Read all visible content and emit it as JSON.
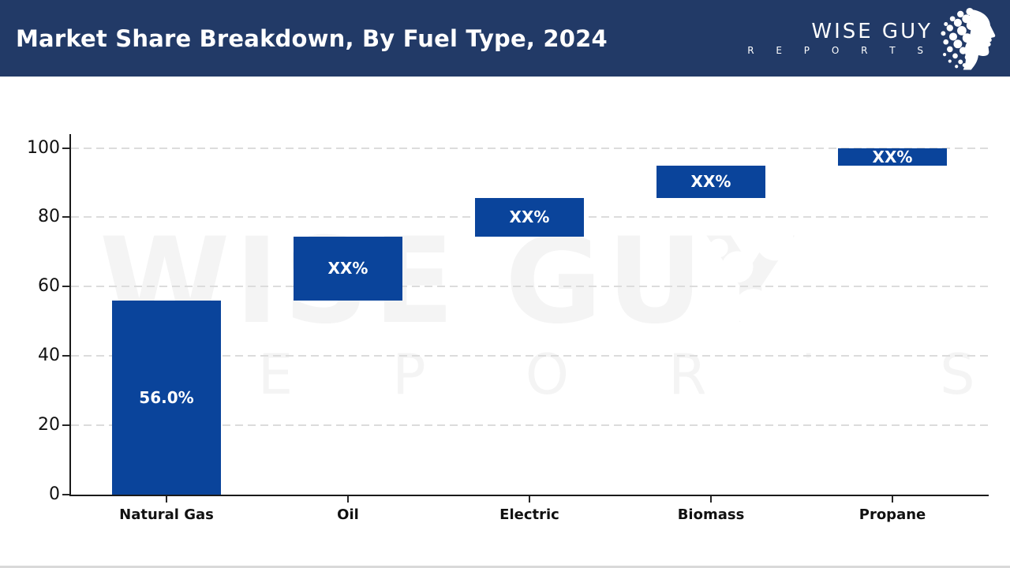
{
  "header": {
    "title": "Market Share Breakdown, By Fuel Type, 2024",
    "background_color": "#223a67",
    "text_color": "#ffffff"
  },
  "logo": {
    "name": "WISE GUY",
    "subtitle": "R E P O R T S"
  },
  "watermark": {
    "line1": "WISE GUY",
    "line2": "R E P O R T S"
  },
  "chart_data": {
    "type": "bar",
    "subtype": "waterfall",
    "title": "Market Share Breakdown, By Fuel Type, 2024",
    "categories": [
      "Natural Gas",
      "Oil",
      "Electric",
      "Biomass",
      "Propane"
    ],
    "segments": [
      {
        "category": "Natural Gas",
        "start": 0,
        "end": 56,
        "label": "56.0%"
      },
      {
        "category": "Oil",
        "start": 56,
        "end": 74.5,
        "label": "XX%"
      },
      {
        "category": "Electric",
        "start": 74.5,
        "end": 85.5,
        "label": "XX%"
      },
      {
        "category": "Biomass",
        "start": 85.5,
        "end": 95,
        "label": "XX%"
      },
      {
        "category": "Propane",
        "start": 95,
        "end": 100,
        "label": "XX%"
      }
    ],
    "y_ticks": [
      0,
      20,
      40,
      60,
      80,
      100
    ],
    "ylim": [
      0,
      104
    ],
    "xlabel": "",
    "ylabel": "",
    "grid": "horizontal-dashed",
    "legend": "none",
    "bar_color": "#0a449b",
    "bar_label_color": "#ffffff"
  }
}
